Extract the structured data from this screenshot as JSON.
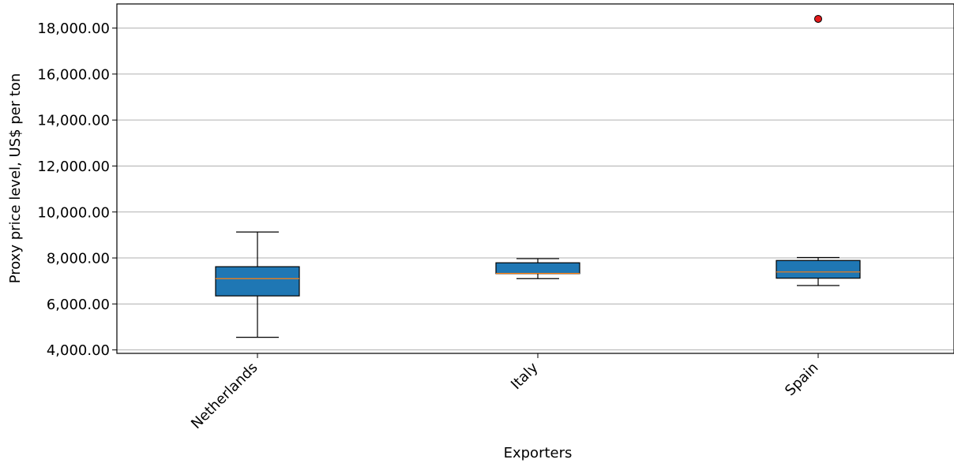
{
  "chart_data": {
    "type": "boxplot",
    "title": "",
    "xlabel": "Exporters",
    "ylabel": "Proxy price level, US$ per ton",
    "ylim": [
      3850,
      19050
    ],
    "yticks": [
      4000,
      6000,
      8000,
      10000,
      12000,
      14000,
      16000,
      18000
    ],
    "ytick_labels": [
      "4,000.00",
      "6,000.00",
      "8,000.00",
      "10,000.00",
      "12,000.00",
      "14,000.00",
      "16,000.00",
      "18,000.00"
    ],
    "grid": "horizontal",
    "categories": [
      "Netherlands",
      "Italy",
      "Spain"
    ],
    "boxes": [
      {
        "category": "Netherlands",
        "whisker_low": 4550,
        "q1": 6350,
        "median": 7100,
        "q3": 7620,
        "whisker_high": 9130,
        "outliers": []
      },
      {
        "category": "Italy",
        "whisker_low": 7100,
        "q1": 7320,
        "median": 7330,
        "q3": 7790,
        "whisker_high": 7970,
        "outliers": []
      },
      {
        "category": "Spain",
        "whisker_low": 6800,
        "q1": 7120,
        "median": 7390,
        "q3": 7890,
        "whisker_high": 8020,
        "outliers": [
          18400
        ]
      }
    ],
    "colors": {
      "box_fill": "#1f77b4",
      "median": "#ff7f0e",
      "outlier": "#e31a1c",
      "grid": "#b0b0b0",
      "axis": "#000000"
    }
  }
}
